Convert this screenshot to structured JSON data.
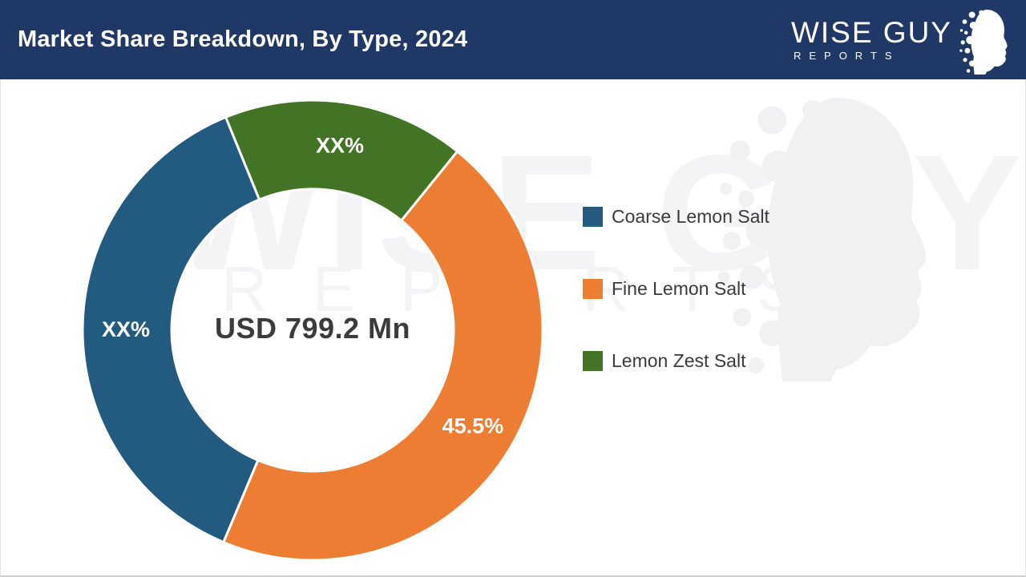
{
  "header": {
    "title": "Market Share Breakdown, By Type, 2024",
    "background_color": "#1F3866",
    "logo": {
      "line1": "WISE GUY",
      "line2": "REPORTS"
    }
  },
  "watermark": {
    "line1": "WISE GUY",
    "line2": "REPORTS"
  },
  "chart_data": {
    "type": "pie",
    "subtype": "donut",
    "title": "Market Share Breakdown, By Type, 2024",
    "center_label": "USD 799.2 Mn",
    "unit": "percent share",
    "segments": [
      {
        "label": "Coarse Lemon Salt",
        "display_pct": "XX%",
        "value_pct_est": 37.5,
        "color": "#235A80"
      },
      {
        "label": "Fine Lemon Salt",
        "display_pct": "45.5%",
        "value_pct_est": 45.5,
        "color": "#EC7D33"
      },
      {
        "label": "Lemon Zest Salt",
        "display_pct": "XX%",
        "value_pct_est": 17.0,
        "color": "#437426"
      }
    ],
    "legend_position": "right",
    "hole_ratio": 0.61,
    "draw": {
      "center": [
        390,
        412
      ],
      "outer_radius": 287,
      "inner_radius": 176,
      "label_radius": 233,
      "start_deg": 112.2,
      "clockwise": true,
      "order": [
        2,
        1,
        0
      ]
    }
  }
}
